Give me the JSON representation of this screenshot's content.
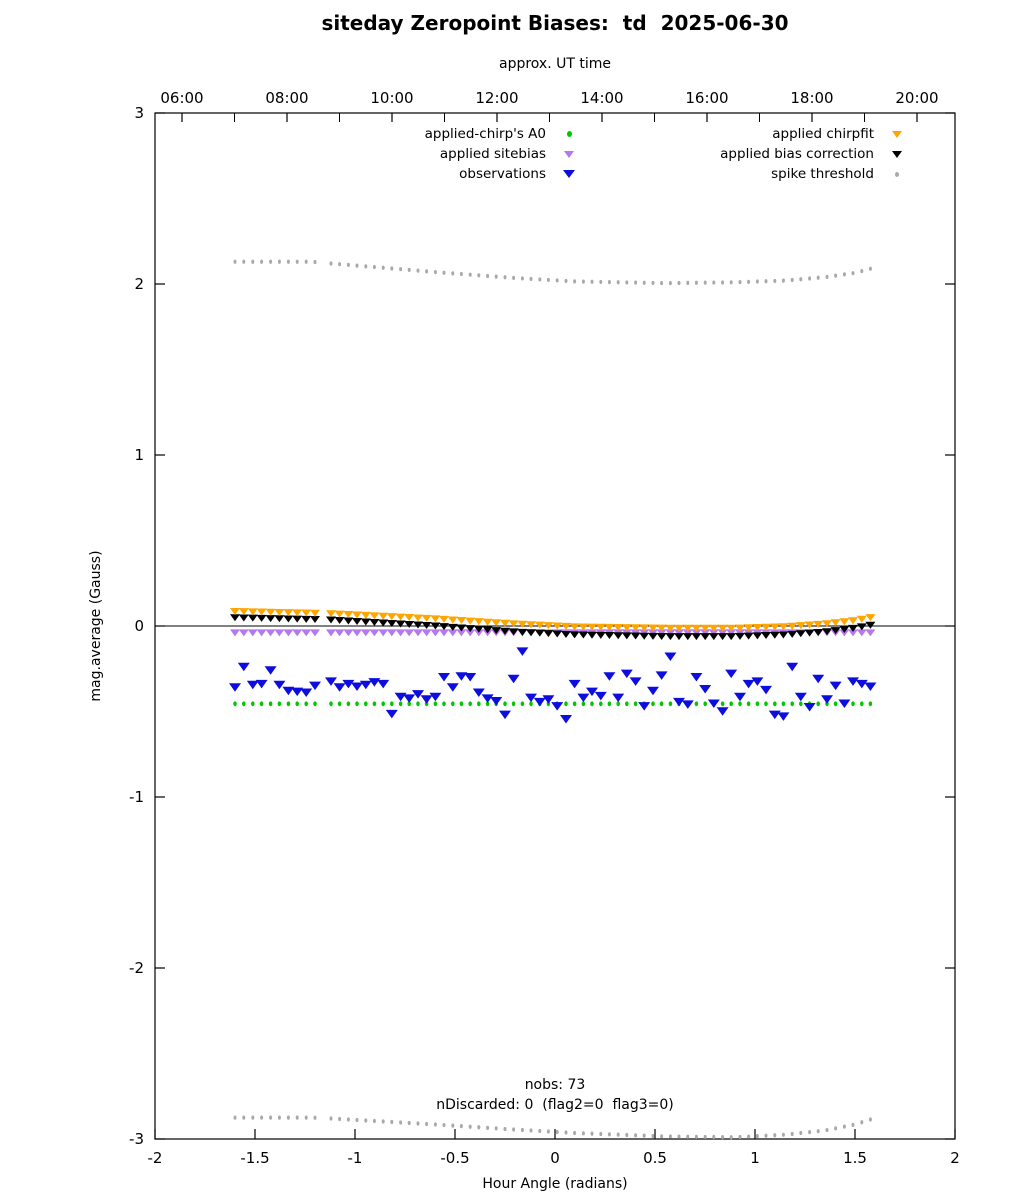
{
  "title": "siteday Zeropoint Biases:  td  2025-06-30",
  "annotations": {
    "nobs": "nobs: 73",
    "ndiscarded": "nDiscarded: 0  (flag2=0  flag3=0)"
  },
  "colors": {
    "green": "#00c800",
    "orange": "#ffa500",
    "purple": "#b678f0",
    "black": "#000000",
    "blue": "#0d0de0",
    "gray": "#a9a9a9",
    "axis": "#000000"
  },
  "legend": {
    "columns": [
      {
        "items": [
          {
            "label": "applied-chirp's A0",
            "marker": "dot",
            "color": "#00c800"
          },
          {
            "label": "applied sitebias",
            "marker": "triangle-down",
            "color": "#b678f0"
          },
          {
            "label": "observations",
            "marker": "triangle-down-big",
            "color": "#0d0de0"
          }
        ]
      },
      {
        "items": [
          {
            "label": "applied chirpfit",
            "marker": "triangle-down",
            "color": "#ffa500"
          },
          {
            "label": "applied bias correction",
            "marker": "triangle-down",
            "color": "#000000"
          },
          {
            "label": "spike threshold",
            "marker": "small-dot",
            "color": "#a9a9a9"
          }
        ]
      }
    ]
  },
  "axes": {
    "top": {
      "label": "approx. UT time",
      "major": [
        {
          "label": "06:00",
          "ha": -1.865
        },
        {
          "label": "08:00",
          "ha": -1.34
        },
        {
          "label": "10:00",
          "ha": -0.815
        },
        {
          "label": "12:00",
          "ha": -0.29
        },
        {
          "label": "14:00",
          "ha": 0.235
        },
        {
          "label": "16:00",
          "ha": 0.76
        },
        {
          "label": "18:00",
          "ha": 1.285
        },
        {
          "label": "20:00",
          "ha": 1.81
        }
      ],
      "minor_ha": [
        -1.6025,
        -1.0775,
        -0.5525,
        -0.0275,
        0.4975,
        1.0225,
        1.5475
      ]
    },
    "bottom": {
      "label": "Hour Angle (radians)",
      "ticks": [
        {
          "label": "-2",
          "v": -2
        },
        {
          "label": "-1.5",
          "v": -1.5
        },
        {
          "label": "-1",
          "v": -1
        },
        {
          "label": "-0.5",
          "v": -0.5
        },
        {
          "label": "0",
          "v": 0
        },
        {
          "label": "0.5",
          "v": 0.5
        },
        {
          "label": "1",
          "v": 1
        },
        {
          "label": "1.5",
          "v": 1.5
        },
        {
          "label": "2",
          "v": 2
        }
      ]
    },
    "left": {
      "label": "mag.average (Gauss)",
      "ticks": [
        {
          "label": "3",
          "v": 3
        },
        {
          "label": "2",
          "v": 2
        },
        {
          "label": "1",
          "v": 1
        },
        {
          "label": "0",
          "v": 0
        },
        {
          "label": "-1",
          "v": -1
        },
        {
          "label": "-2",
          "v": -2
        },
        {
          "label": "-3",
          "v": -3
        }
      ]
    }
  },
  "chart_data": {
    "type": "scatter",
    "title": "siteday Zeropoint Biases:  td  2025-06-30",
    "xlabel": "Hour Angle (radians)",
    "x2label": "approx. UT time",
    "ylabel": "mag.average (Gauss)",
    "xlim": [
      -2,
      2
    ],
    "ylim": [
      -3,
      3
    ],
    "zero_line": 0,
    "nobs": 73,
    "x": [
      -1.6,
      -1.556,
      -1.511,
      -1.467,
      -1.422,
      -1.378,
      -1.333,
      -1.289,
      -1.244,
      -1.2,
      -1.12,
      -1.077,
      -1.033,
      -0.99,
      -0.946,
      -0.903,
      -0.859,
      -0.816,
      -0.772,
      -0.729,
      -0.685,
      -0.642,
      -0.598,
      -0.555,
      -0.511,
      -0.468,
      -0.424,
      -0.381,
      -0.337,
      -0.294,
      -0.25,
      -0.207,
      -0.163,
      -0.12,
      -0.076,
      -0.033,
      0.011,
      0.055,
      0.098,
      0.142,
      0.185,
      0.229,
      0.272,
      0.316,
      0.359,
      0.403,
      0.446,
      0.49,
      0.533,
      0.577,
      0.62,
      0.664,
      0.707,
      0.751,
      0.794,
      0.838,
      0.881,
      0.925,
      0.968,
      1.012,
      1.055,
      1.099,
      1.142,
      1.186,
      1.229,
      1.273,
      1.316,
      1.36,
      1.403,
      1.447,
      1.49,
      1.534,
      1.577
    ],
    "series": [
      {
        "name": "spike threshold (upper)",
        "marker": "small-dot",
        "color": "#a9a9a9",
        "anchors": [
          [
            -1.6,
            2.13
          ],
          [
            -1.21,
            2.13
          ],
          [
            -1.12,
            2.12
          ],
          [
            -0.6,
            2.07
          ],
          [
            -0.2,
            2.035
          ],
          [
            0.1,
            2.015
          ],
          [
            0.55,
            2.005
          ],
          [
            0.9,
            2.01
          ],
          [
            1.15,
            2.02
          ],
          [
            1.35,
            2.04
          ],
          [
            1.5,
            2.065
          ],
          [
            1.58,
            2.09
          ]
        ]
      },
      {
        "name": "spike threshold (lower)",
        "marker": "small-dot",
        "color": "#a9a9a9",
        "anchors": [
          [
            -1.6,
            -2.875
          ],
          [
            -1.21,
            -2.875
          ],
          [
            -1.12,
            -2.88
          ],
          [
            -0.6,
            -2.915
          ],
          [
            -0.2,
            -2.945
          ],
          [
            0.1,
            -2.965
          ],
          [
            0.55,
            -2.985
          ],
          [
            0.9,
            -2.99
          ],
          [
            1.15,
            -2.975
          ],
          [
            1.35,
            -2.95
          ],
          [
            1.5,
            -2.915
          ],
          [
            1.58,
            -2.885
          ]
        ]
      },
      {
        "name": "applied-chirp's A0",
        "marker": "dot",
        "color": "#00c800",
        "constant": -0.455
      },
      {
        "name": "observations",
        "marker": "triangle-down",
        "color": "#0d0de0",
        "size": 12,
        "values": [
          -0.36,
          -0.24,
          -0.345,
          -0.34,
          -0.26,
          -0.345,
          -0.38,
          -0.385,
          -0.39,
          -0.35,
          -0.325,
          -0.36,
          -0.34,
          -0.355,
          -0.345,
          -0.33,
          -0.34,
          -0.515,
          -0.415,
          -0.425,
          -0.4,
          -0.43,
          -0.415,
          -0.3,
          -0.36,
          -0.295,
          -0.3,
          -0.39,
          -0.425,
          -0.44,
          -0.52,
          -0.31,
          -0.15,
          -0.42,
          -0.445,
          -0.43,
          -0.47,
          -0.545,
          -0.34,
          -0.42,
          -0.385,
          -0.41,
          -0.295,
          -0.42,
          -0.28,
          -0.325,
          -0.47,
          -0.38,
          -0.29,
          -0.18,
          -0.445,
          -0.46,
          -0.3,
          -0.37,
          -0.455,
          -0.5,
          -0.28,
          -0.415,
          -0.34,
          -0.325,
          -0.375,
          -0.52,
          -0.53,
          -0.24,
          -0.415,
          -0.475,
          -0.31,
          -0.43,
          -0.35,
          -0.455,
          -0.325,
          -0.34,
          -0.355
        ]
      },
      {
        "name": "applied sitebias",
        "marker": "triangle-down",
        "color": "#b678f0",
        "constant": -0.04
      },
      {
        "name": "applied bias correction",
        "marker": "triangle-down",
        "color": "#000000",
        "anchors": [
          [
            -1.6,
            0.048
          ],
          [
            -1.21,
            0.038
          ],
          [
            -1.12,
            0.035
          ],
          [
            -0.6,
            0.0
          ],
          [
            -0.2,
            -0.035
          ],
          [
            0.1,
            -0.052
          ],
          [
            0.55,
            -0.062
          ],
          [
            0.9,
            -0.062
          ],
          [
            1.15,
            -0.052
          ],
          [
            1.35,
            -0.035
          ],
          [
            1.5,
            -0.012
          ],
          [
            1.58,
            0.005
          ]
        ]
      },
      {
        "name": "applied chirpfit",
        "marker": "triangle-down",
        "color": "#ffa500",
        "anchors": [
          [
            -1.6,
            0.085
          ],
          [
            -1.21,
            0.075
          ],
          [
            -1.12,
            0.072
          ],
          [
            -0.6,
            0.042
          ],
          [
            -0.2,
            0.012
          ],
          [
            0.1,
            -0.005
          ],
          [
            0.55,
            -0.013
          ],
          [
            0.9,
            -0.013
          ],
          [
            1.15,
            -0.004
          ],
          [
            1.35,
            0.012
          ],
          [
            1.5,
            0.032
          ],
          [
            1.58,
            0.05
          ]
        ]
      }
    ]
  }
}
